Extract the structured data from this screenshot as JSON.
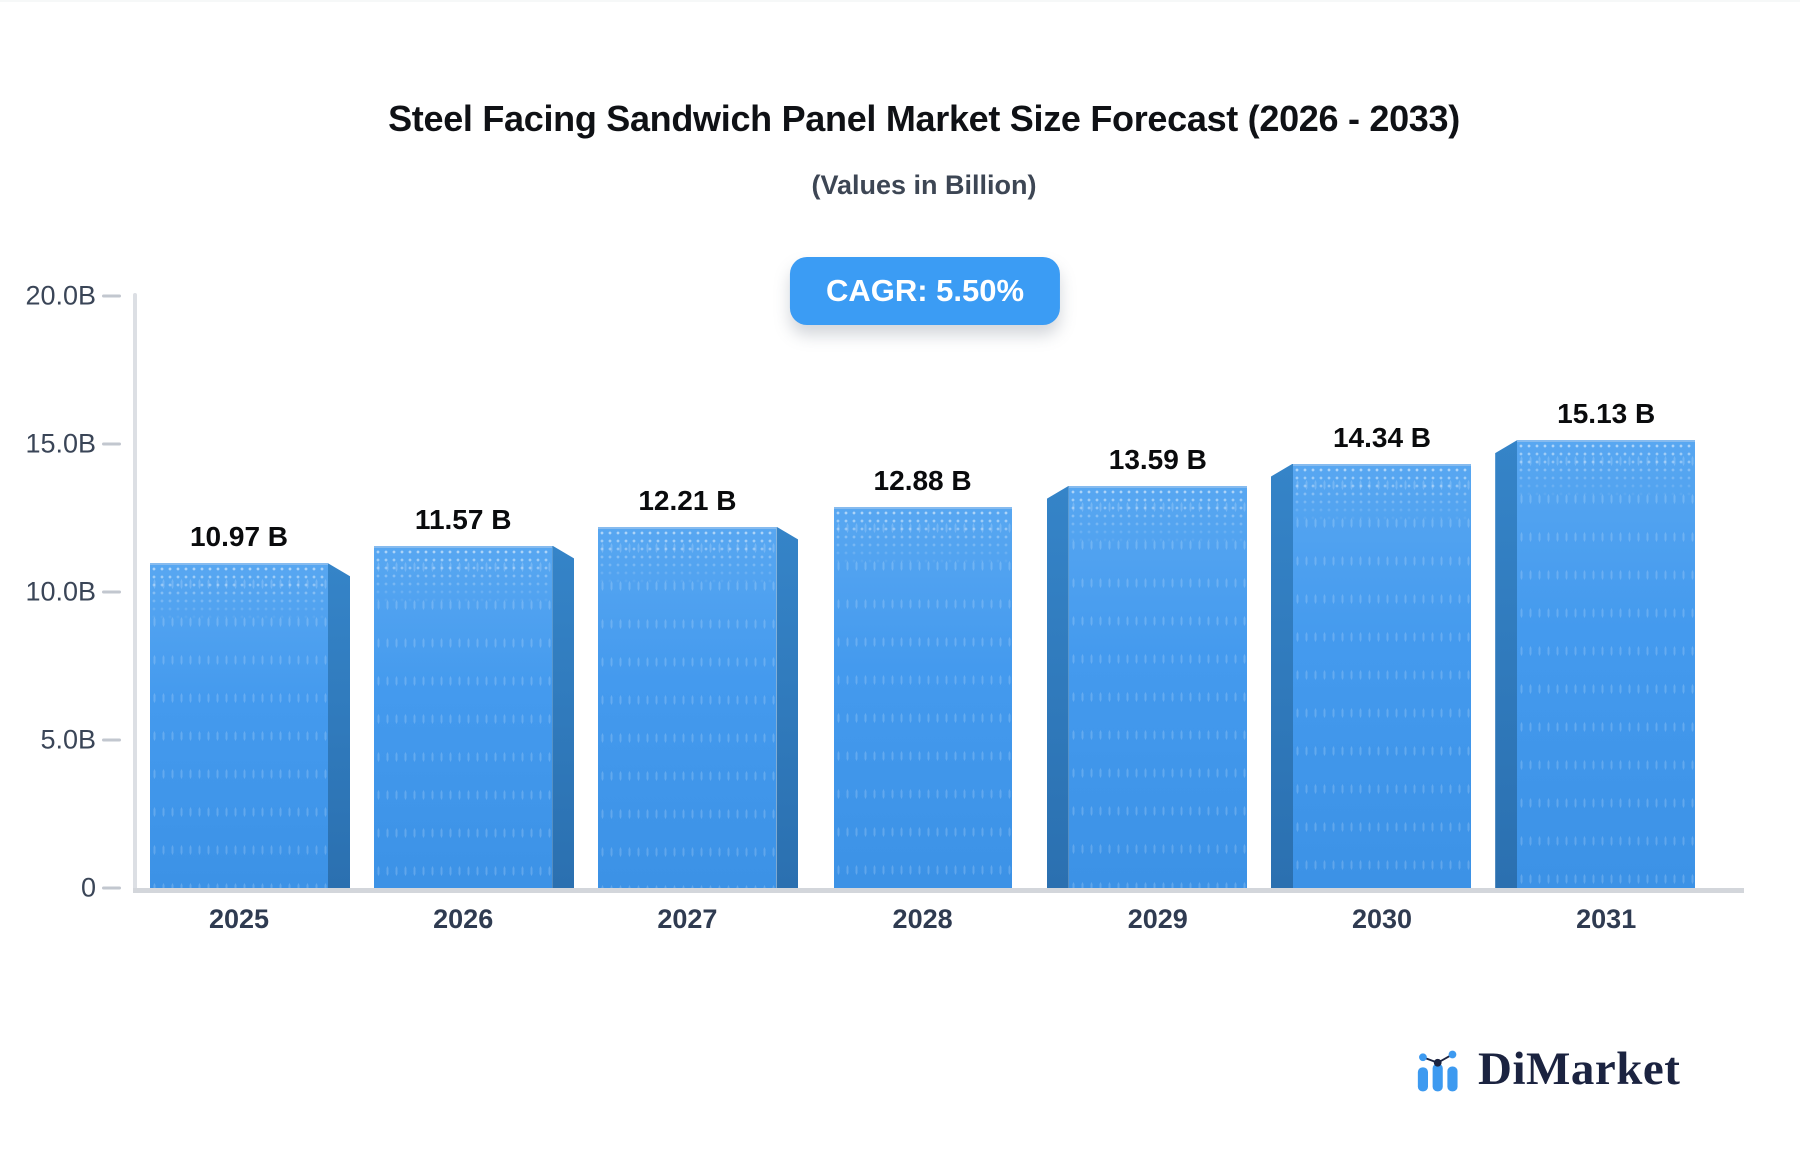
{
  "header": {
    "title": "Steel Facing Sandwich Panel Market Size Forecast (2026 - 2033)",
    "subtitle": "(Values in Billion)"
  },
  "badge": {
    "label": "CAGR: 5.50%",
    "color": "#3b9cf4"
  },
  "chart_data": {
    "type": "bar",
    "title": "Steel Facing Sandwich Panel Market Size Forecast (2026 - 2033)",
    "subtitle": "(Values in Billion)",
    "categories": [
      "2025",
      "2026",
      "2027",
      "2028",
      "2029",
      "2030",
      "2031"
    ],
    "values": [
      10.97,
      11.57,
      12.21,
      12.88,
      13.59,
      14.34,
      15.13
    ],
    "bar_labels": [
      "10.97 B",
      "11.57 B",
      "12.21 B",
      "12.88 B",
      "13.59 B",
      "14.34 B",
      "15.13 B"
    ],
    "unit": "Billion",
    "cagr": "5.50%",
    "xlabel": "",
    "ylabel": "",
    "ylim": [
      0,
      20
    ],
    "y_ticks": [
      "20.0B",
      "15.0B",
      "10.0B",
      "5.0B",
      "0"
    ],
    "y_tick_values": [
      20,
      15,
      10,
      5,
      0
    ],
    "grid": false,
    "legend": false,
    "style": "3d-columns",
    "colors": {
      "bar_face_top": "#58a7f1",
      "bar_face_bottom": "#3c92e6",
      "bar_side": "#2e78ba",
      "axis": "#d3d6db",
      "tick": "#c2c7cf"
    }
  },
  "brand": {
    "name": "DiMarket",
    "logo_icon": "mini-bar-line-chart-icon",
    "text_color": "#1b2340",
    "accent": "#3d9af0"
  }
}
